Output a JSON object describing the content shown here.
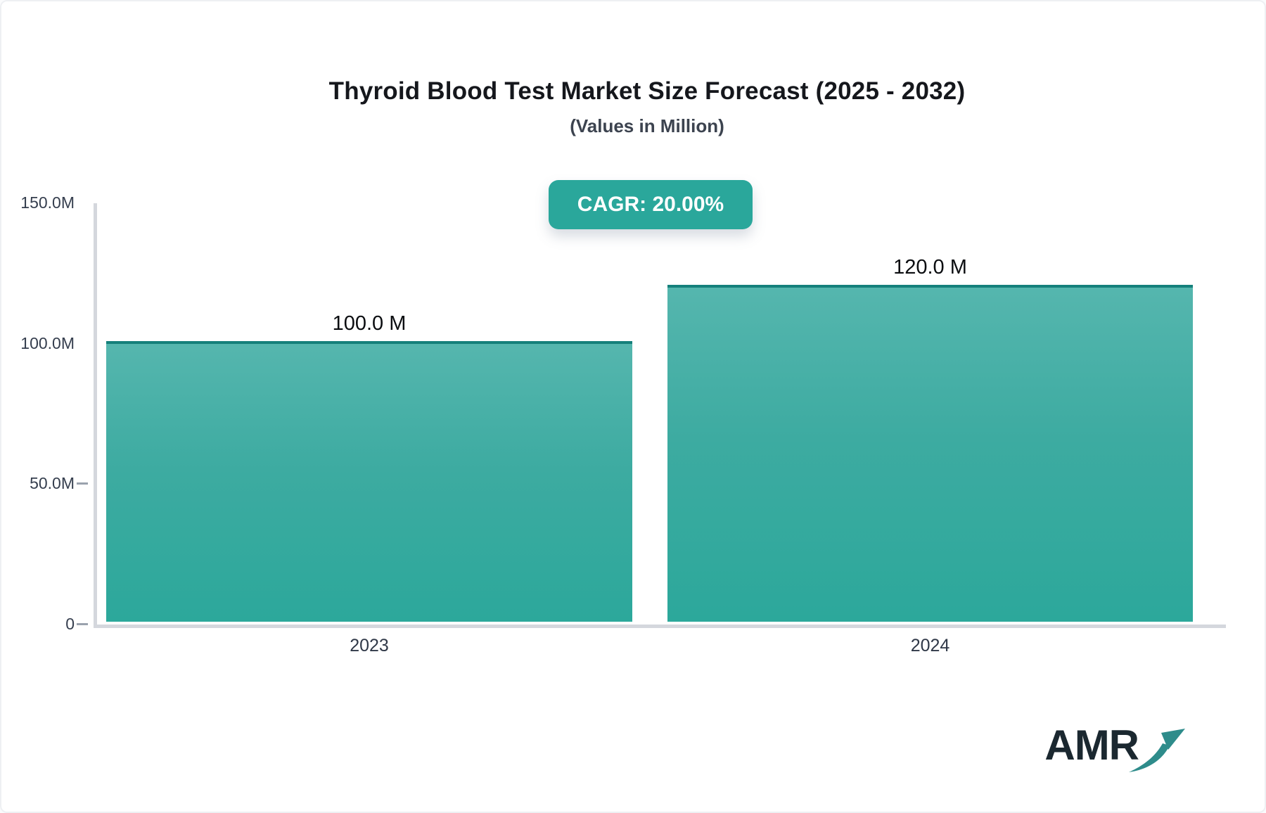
{
  "header": {
    "title": "Thyroid Blood Test Market Size Forecast (2025 - 2032)",
    "subtitle": "(Values in Million)",
    "cagr_badge": "CAGR: 20.00%"
  },
  "chart_data": {
    "type": "bar",
    "title": "Thyroid Blood Test Market Size Forecast (2025 - 2032)",
    "subtitle": "(Values in Million)",
    "unit": "Million",
    "cagr_percent": 20.0,
    "categories": [
      "2023",
      "2024"
    ],
    "values": [
      100.0,
      120.0
    ],
    "bar_labels": [
      "100.0 M",
      "120.0 M"
    ],
    "xlabel": "",
    "ylabel": "",
    "ylim": [
      0,
      150
    ],
    "grid": false,
    "legend": "none",
    "yticks": [
      {
        "value": 150,
        "label": "150.0M"
      },
      {
        "value": 100,
        "label": "100.0M"
      },
      {
        "value": 50,
        "label": "50.0M"
      },
      {
        "value": 0,
        "label": "0"
      }
    ],
    "colors": {
      "bar_gradient_top": "#55b6ae",
      "bar_gradient_bottom": "#2ca89b",
      "bar_top_border": "#15807b",
      "badge_background": "#2aa79b",
      "axis_line": "#d4d7dd",
      "tick_text": "#353e4e",
      "title_text": "#15171c"
    }
  },
  "branding": {
    "logo_text": "AMR"
  }
}
